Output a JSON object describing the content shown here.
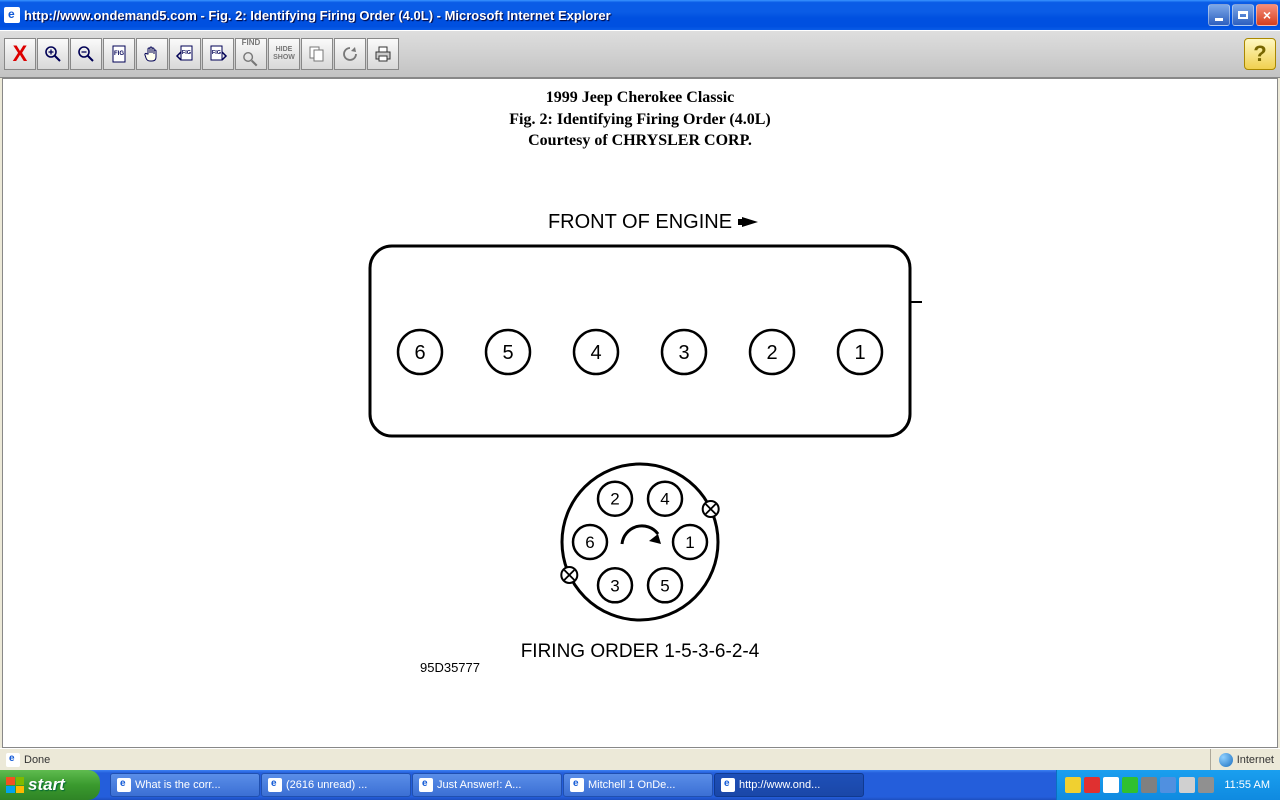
{
  "window": {
    "title": "http://www.ondemand5.com - Fig. 2: Identifying Firing Order (4.0L) - Microsoft Internet Explorer"
  },
  "toolbar": {
    "buttons": [
      "close",
      "zoom-in",
      "zoom-out",
      "fig-doc",
      "hand",
      "prev-fig",
      "next-fig",
      "find",
      "hide-show",
      "copy",
      "refresh",
      "print"
    ],
    "find_label": "FIND",
    "hideshow_label": "HIDE SHOW",
    "help_label": "?"
  },
  "content": {
    "line1": "1999 Jeep Cherokee Classic",
    "line2": "Fig. 2: Identifying Firing Order (4.0L)",
    "line3": "Courtesy of CHRYSLER CORP."
  },
  "diagram": {
    "front_label": "FRONT OF ENGINE",
    "cylinders": [
      "6",
      "5",
      "4",
      "3",
      "2",
      "1"
    ],
    "distributor": {
      "positions": [
        {
          "n": "6",
          "angle": 270
        },
        {
          "n": "2",
          "angle": 330
        },
        {
          "n": "4",
          "angle": 30
        },
        {
          "n": "1",
          "angle": 90
        },
        {
          "n": "5",
          "angle": 150
        },
        {
          "n": "3",
          "angle": 210
        }
      ],
      "screws": [
        {
          "angle": 245
        },
        {
          "angle": 65
        }
      ]
    },
    "firing_order_label": "FIRING ORDER 1-5-3-6-2-4",
    "ref": "95D35777",
    "stroke": "#000000",
    "font": "Arial"
  },
  "statusbar": {
    "status": "Done",
    "zone": "Internet"
  },
  "taskbar": {
    "start": "start",
    "items": [
      {
        "label": "What is the corr...",
        "active": false
      },
      {
        "label": "(2616 unread) ...",
        "active": false
      },
      {
        "label": "Just Answer!: A...",
        "active": false
      },
      {
        "label": "Mitchell 1 OnDe...",
        "active": false
      },
      {
        "label": "http://www.ond...",
        "active": true
      }
    ],
    "tray_icons": [
      "#f0d030",
      "#e03030",
      "#ffffff",
      "#30c030",
      "#808080",
      "#5090e0",
      "#d0d0d0",
      "#909090"
    ],
    "clock": "11:55 AM"
  }
}
